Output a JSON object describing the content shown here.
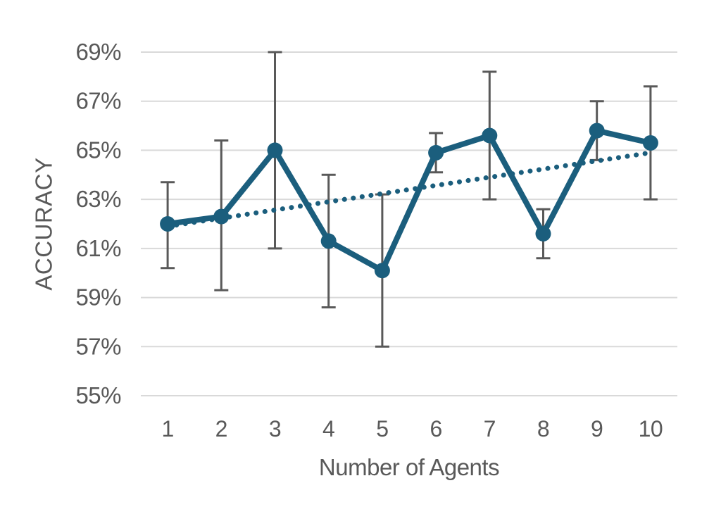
{
  "figure": {
    "background": "#ffffff"
  },
  "chart_data": {
    "type": "line",
    "title": "",
    "xlabel": "Number of Agents",
    "ylabel": "ACCURACY",
    "grid": true,
    "legend": "none",
    "x_tick_labels": [
      "1",
      "2",
      "3",
      "4",
      "5",
      "6",
      "7",
      "8",
      "9",
      "10"
    ],
    "y_axis": {
      "min": 55,
      "max": 69,
      "tick_step": 2,
      "tick_values": [
        69,
        67,
        65,
        63,
        61,
        59,
        57,
        55
      ],
      "tick_labels": [
        "69%",
        "67%",
        "65%",
        "63%",
        "61%",
        "59%",
        "57%",
        "55%"
      ],
      "unit": "%"
    },
    "series": [
      {
        "name": "Accuracy",
        "marker": "circle",
        "points": [
          {
            "x": 1,
            "y": 62.0,
            "err_lo": 60.2,
            "err_hi": 63.7
          },
          {
            "x": 2,
            "y": 62.3,
            "err_lo": 59.3,
            "err_hi": 65.4
          },
          {
            "x": 3,
            "y": 65.0,
            "err_lo": 61.0,
            "err_hi": 69.0
          },
          {
            "x": 4,
            "y": 61.3,
            "err_lo": 58.6,
            "err_hi": 64.0
          },
          {
            "x": 5,
            "y": 60.1,
            "err_lo": 57.0,
            "err_hi": 63.2
          },
          {
            "x": 6,
            "y": 64.9,
            "err_lo": 64.1,
            "err_hi": 65.7
          },
          {
            "x": 7,
            "y": 65.6,
            "err_lo": 63.0,
            "err_hi": 68.2
          },
          {
            "x": 8,
            "y": 61.6,
            "err_lo": 60.6,
            "err_hi": 62.6
          },
          {
            "x": 9,
            "y": 65.8,
            "err_lo": 64.6,
            "err_hi": 67.0
          },
          {
            "x": 10,
            "y": 65.3,
            "err_lo": 63.0,
            "err_hi": 67.6
          }
        ]
      }
    ],
    "trendline": {
      "type": "linear",
      "style": "dotted",
      "y_at_first_x": 61.9,
      "y_at_last_x": 64.9
    },
    "colors": {
      "series": "#1b5e7d",
      "trendline": "#1b5e7d",
      "error_bar": "#595959",
      "gridline": "#d9d9d9",
      "text": "#595959"
    }
  }
}
